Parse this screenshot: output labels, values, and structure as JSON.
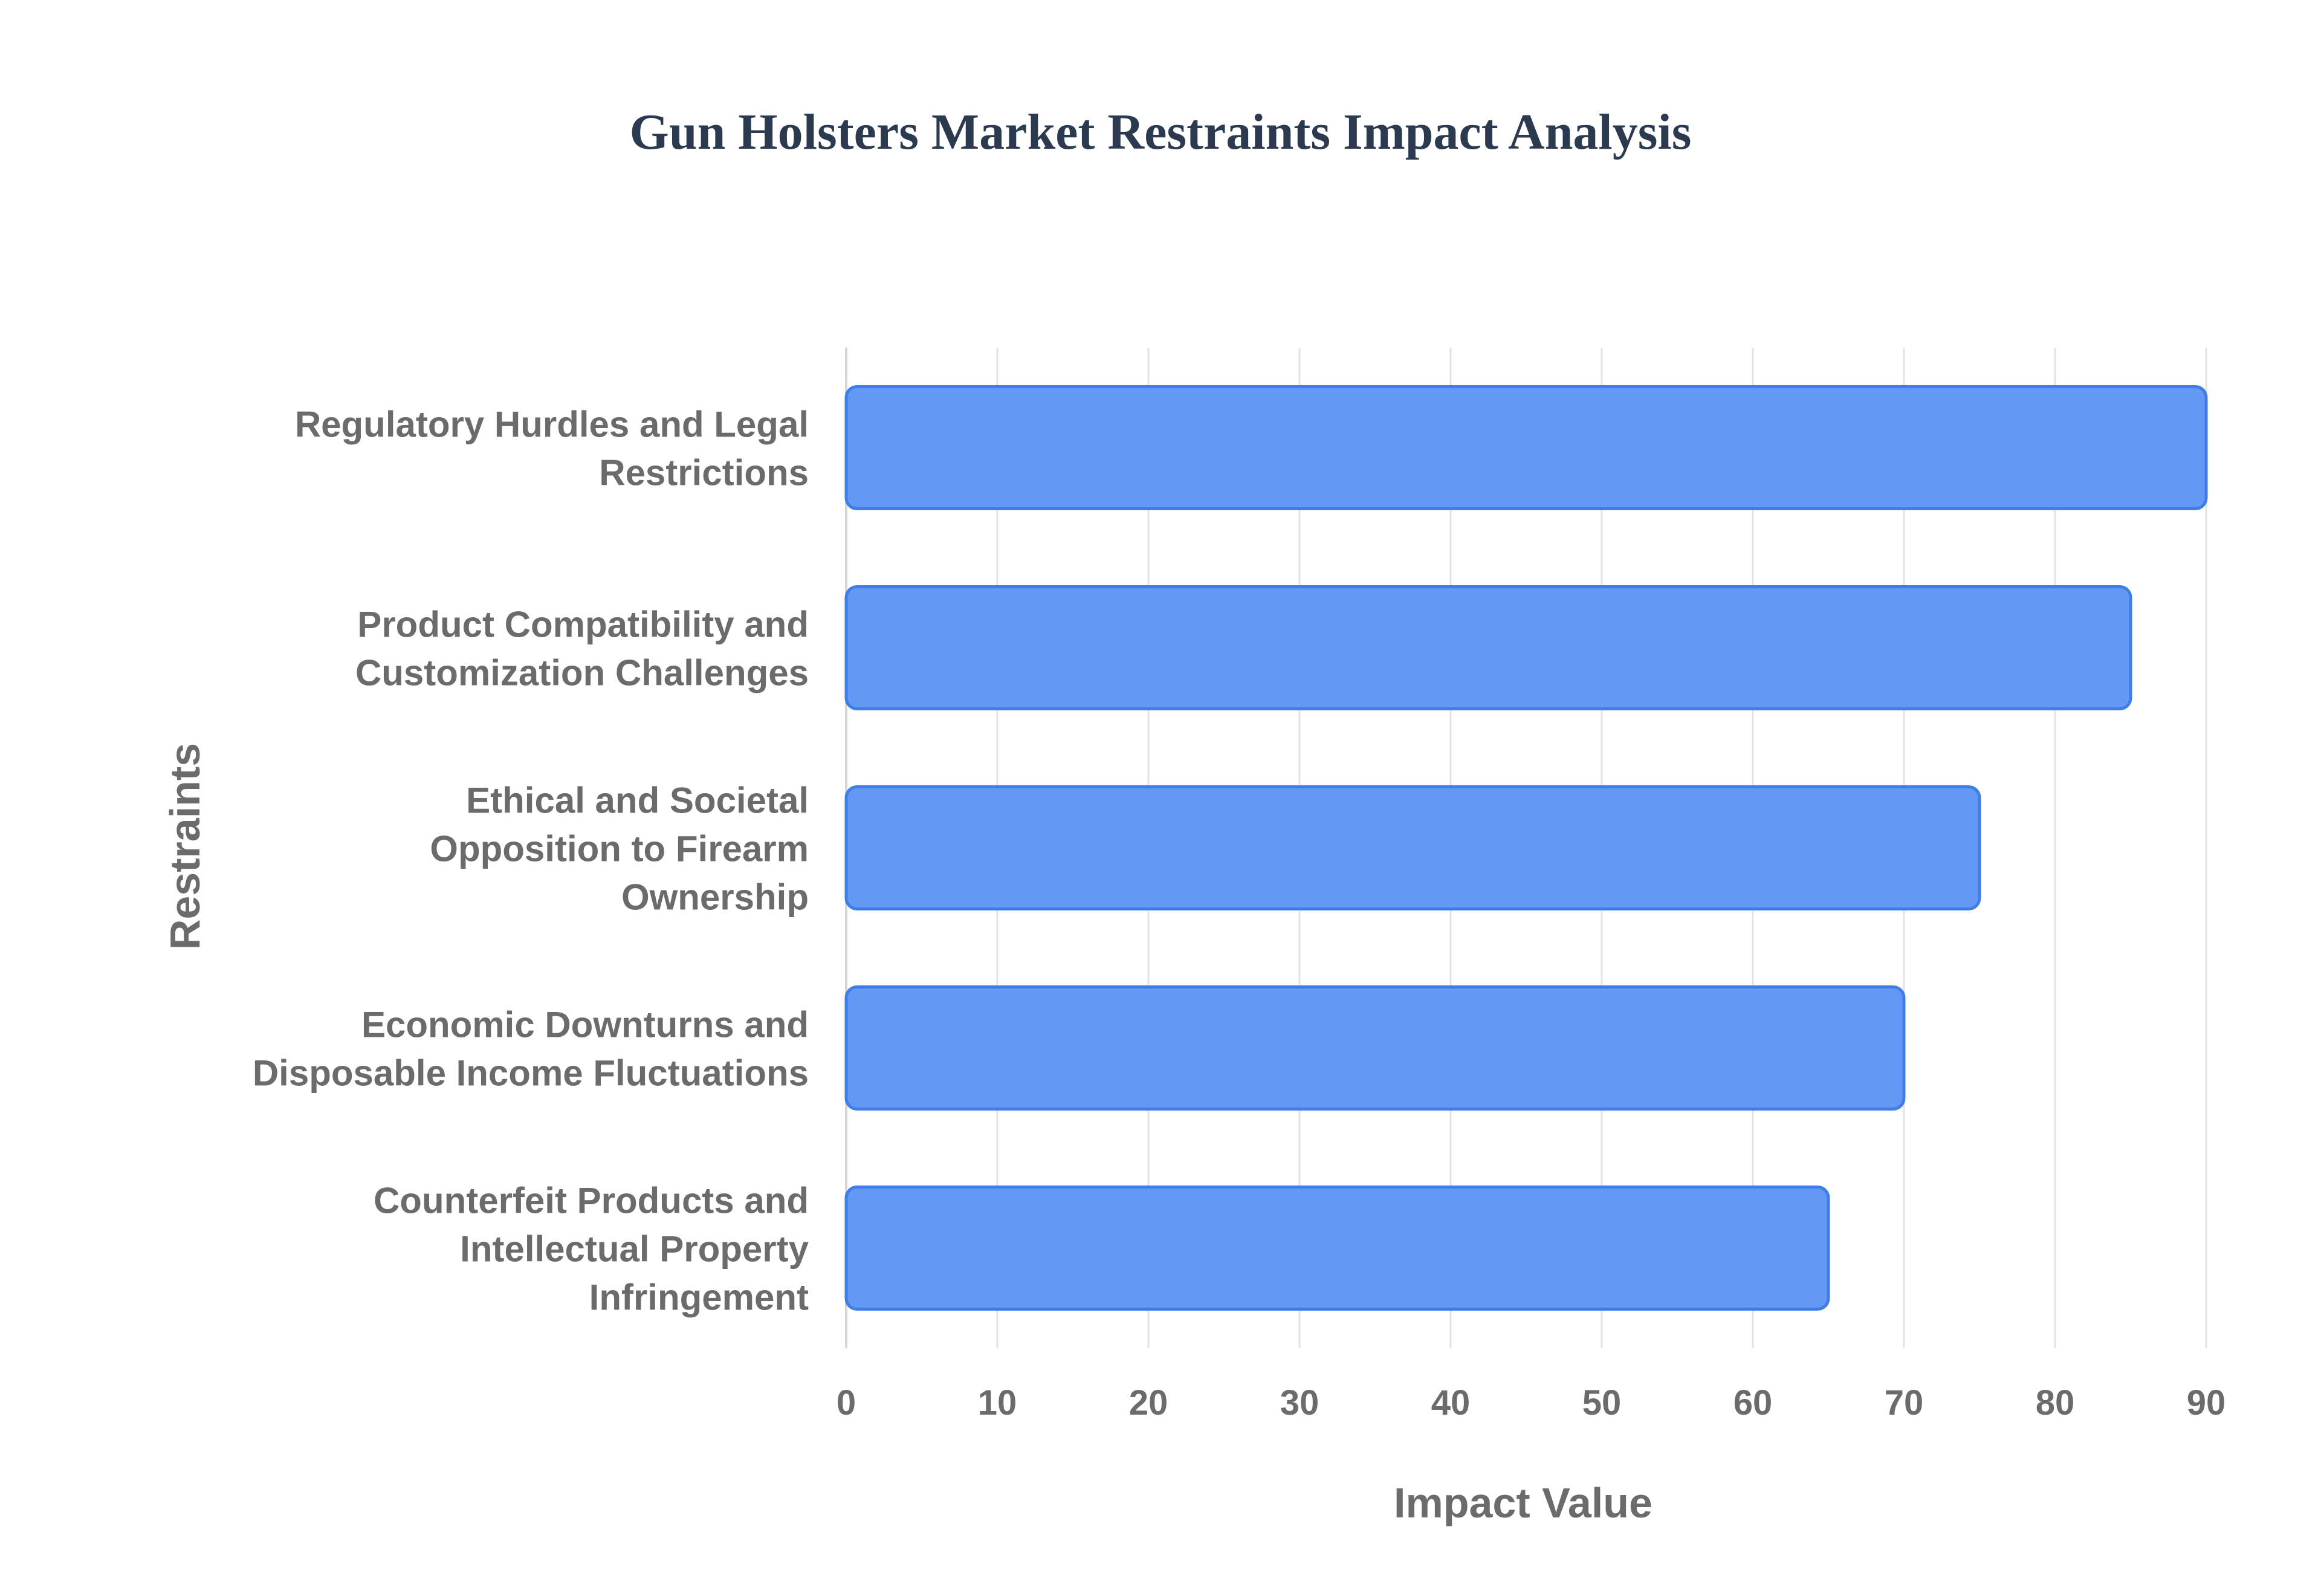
{
  "chart_data": {
    "type": "bar",
    "orientation": "horizontal",
    "title": "Gun Holsters Market Restraints Impact Analysis",
    "xlabel": "Impact Value",
    "ylabel": "Restraints",
    "categories": [
      "Regulatory Hurdles and Legal Restrictions",
      "Product Compatibility and Customization Challenges",
      "Ethical and Societal Opposition to Firearm Ownership",
      "Economic Downturns and Disposable Income Fluctuations",
      "Counterfeit Products and Intellectual Property Infringement"
    ],
    "category_lines": [
      [
        "Regulatory Hurdles and Legal",
        "Restrictions"
      ],
      [
        "Product Compatibility and",
        "Customization Challenges"
      ],
      [
        "Ethical and Societal",
        "Opposition to Firearm",
        "Ownership"
      ],
      [
        "Economic Downturns and",
        "Disposable Income Fluctuations"
      ],
      [
        "Counterfeit Products and",
        "Intellectual Property",
        "Infringement"
      ]
    ],
    "values": [
      90,
      85,
      75,
      70,
      65
    ],
    "xlim": [
      0,
      90
    ],
    "xticks": [
      0,
      10,
      20,
      30,
      40,
      50,
      60,
      70,
      80,
      90
    ],
    "grid": true,
    "legend": "none",
    "bar_color": "#6399f5",
    "bar_edge_color": "#3f7de8"
  }
}
